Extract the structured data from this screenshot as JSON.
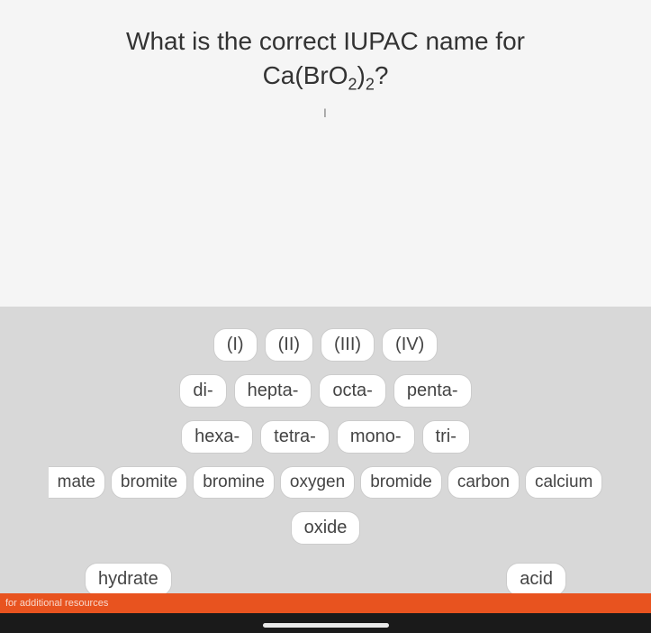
{
  "question": {
    "line1": "What is the correct IUPAC name for",
    "formula_prefix": "Ca(BrO",
    "formula_sub1": "2",
    "formula_mid": ")",
    "formula_sub2": "2",
    "formula_suffix": "?",
    "cursor": "I"
  },
  "slots": [
    "(I)",
    "(II)",
    "(III)",
    "(IV)"
  ],
  "prefixes_row1": [
    "di-",
    "hepta-",
    "octa-",
    "penta-"
  ],
  "prefixes_row2": [
    "hexa-",
    "tetra-",
    "mono-",
    "tri-"
  ],
  "words": [
    "mate",
    "bromite",
    "bromine",
    "oxygen",
    "bromide",
    "carbon",
    "calcium"
  ],
  "words_row2": [
    "oxide"
  ],
  "bottom_left": "hydrate",
  "bottom_right": "acid",
  "footer": "for additional resources",
  "colors": {
    "footer_bg": "#e8531f",
    "pill_bg": "#ffffff",
    "pill_border": "#cccccc",
    "question_bg": "#f5f5f5",
    "answer_bg": "#d8d8d8"
  }
}
